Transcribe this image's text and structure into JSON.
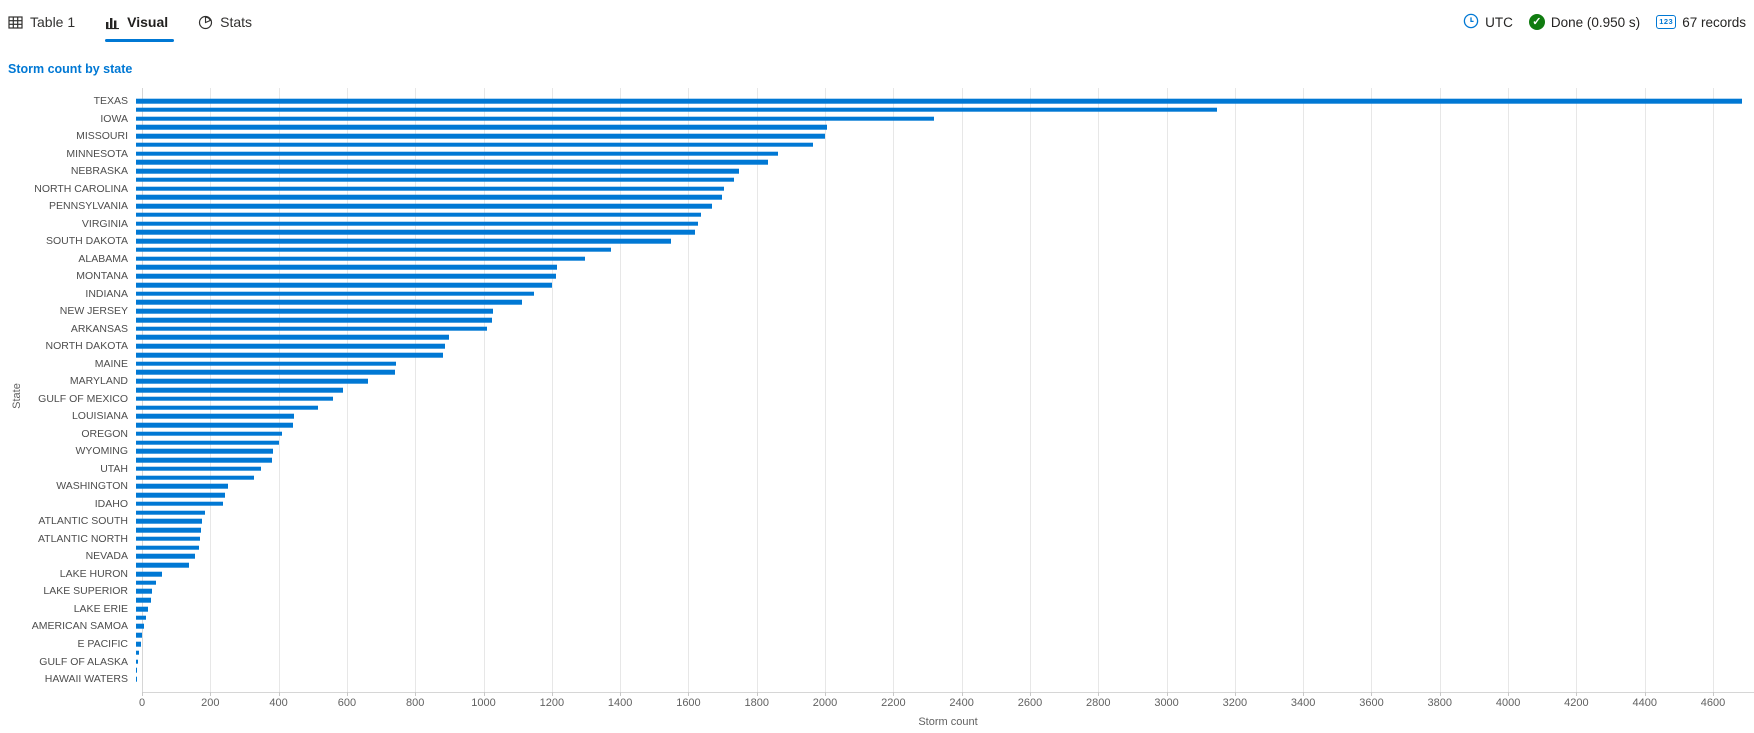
{
  "accent_color": "#0078d4",
  "green_color": "#107c10",
  "bar_color": "#0078d4",
  "tabs": [
    {
      "label": "Table 1"
    },
    {
      "label": "Visual"
    },
    {
      "label": "Stats"
    }
  ],
  "status": {
    "timezone": "UTC",
    "done": "Done (0.950 s)",
    "records": "67 records",
    "records_icon_label": "123",
    "check_glyph": "✓"
  },
  "chart_data": {
    "type": "bar",
    "orientation": "horizontal",
    "title": "Storm count by state",
    "xlabel": "Storm count",
    "ylabel": "State",
    "xlim": [
      0,
      4720
    ],
    "x_ticks": [
      0,
      200,
      400,
      600,
      800,
      1000,
      1200,
      1400,
      1600,
      1800,
      2000,
      2200,
      2400,
      2600,
      2800,
      3000,
      3200,
      3400,
      3600,
      3800,
      4000,
      4200,
      4400,
      4600
    ],
    "grid": true,
    "legend": "none",
    "note": "67 bars sorted descending; category labels are rendered for every other bar only",
    "categories": [
      "TEXAS",
      "",
      "IOWA",
      "",
      "MISSOURI",
      "",
      "MINNESOTA",
      "",
      "NEBRASKA",
      "",
      "NORTH CAROLINA",
      "",
      "PENNSYLVANIA",
      "",
      "VIRGINIA",
      "",
      "SOUTH DAKOTA",
      "",
      "ALABAMA",
      "",
      "MONTANA",
      "",
      "INDIANA",
      "",
      "NEW JERSEY",
      "",
      "ARKANSAS",
      "",
      "NORTH DAKOTA",
      "",
      "MAINE",
      "",
      "MARYLAND",
      "",
      "GULF OF MEXICO",
      "",
      "LOUISIANA",
      "",
      "OREGON",
      "",
      "WYOMING",
      "",
      "UTAH",
      "",
      "WASHINGTON",
      "",
      "IDAHO",
      "",
      "ATLANTIC SOUTH",
      "",
      "ATLANTIC NORTH",
      "",
      "NEVADA",
      "",
      "LAKE HURON",
      "",
      "LAKE SUPERIOR",
      "",
      "LAKE ERIE",
      "",
      "AMERICAN SAMOA",
      "",
      "E PACIFIC",
      "",
      "GULF OF ALASKA",
      "",
      "HAWAII WATERS"
    ],
    "values": [
      4701,
      3166,
      2337,
      2022,
      2016,
      1983,
      1881,
      1850,
      1766,
      1750,
      1721,
      1716,
      1687,
      1655,
      1647,
      1637,
      1567,
      1390,
      1315,
      1233,
      1230,
      1218,
      1164,
      1130,
      1044,
      1042,
      1028,
      916,
      905,
      898,
      760,
      757,
      678,
      605,
      577,
      532,
      463,
      460,
      428,
      420,
      401,
      398,
      366,
      345,
      270,
      262,
      254,
      201,
      193,
      191,
      188,
      184,
      174,
      155,
      75,
      60,
      48,
      45,
      36,
      30,
      22,
      18,
      14,
      10,
      6,
      3,
      1
    ]
  }
}
